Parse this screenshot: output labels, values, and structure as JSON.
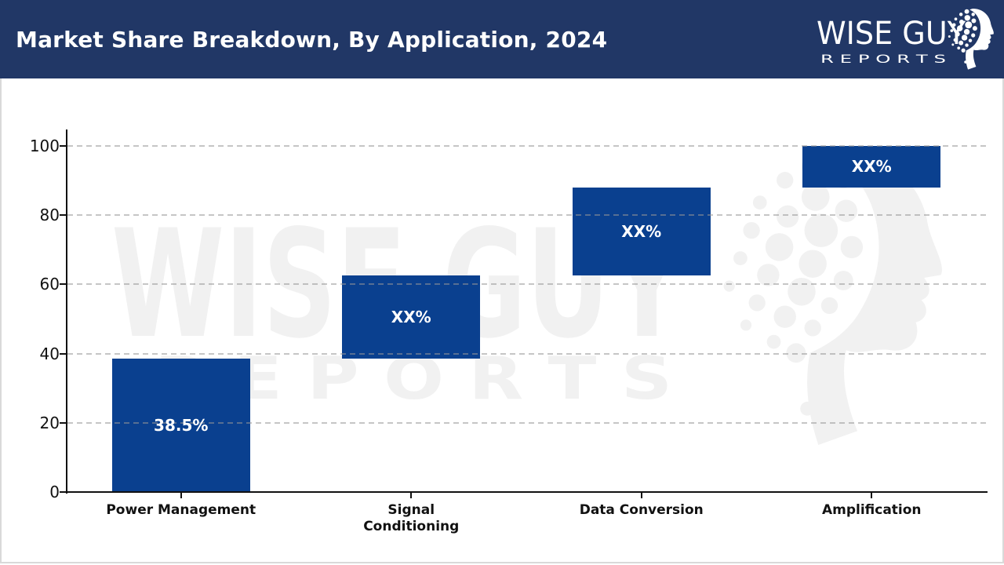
{
  "header": {
    "title": "Market Share Breakdown, By Application, 2024",
    "logo": {
      "line1": "WISE GUY",
      "line2": "R E P O R T S"
    }
  },
  "watermark": {
    "line1": "WISE GUY",
    "line2": "R E P O R T S"
  },
  "colors": {
    "header_bg": "#213766",
    "bar": "#0a408f",
    "bar_label": "#ffffff",
    "axis": "#111111",
    "grid": "rgba(150,150,150,0.55)",
    "watermark": "#f1f1f1",
    "panel_border": "#d9d9d9"
  },
  "chart_data": {
    "type": "bar",
    "subtype": "waterfall",
    "title": "Market Share Breakdown, By Application, 2024",
    "categories": [
      "Power Management",
      "Signal\nConditioning",
      "Data Conversion",
      "Amplification"
    ],
    "series": [
      {
        "name": "Market Share (%)",
        "segments": [
          {
            "category": "Power Management",
            "start": 0,
            "end": 38.5,
            "label": "38.5%"
          },
          {
            "category": "Signal Conditioning",
            "start": 38.5,
            "end": 62.5,
            "label": "XX%"
          },
          {
            "category": "Data Conversion",
            "start": 62.5,
            "end": 88,
            "label": "XX%"
          },
          {
            "category": "Amplification",
            "start": 88,
            "end": 100,
            "label": "XX%"
          }
        ]
      }
    ],
    "ylim": [
      0,
      100
    ],
    "yticks": [
      0,
      20,
      40,
      60,
      80,
      100
    ],
    "grid": "horizontal-dashed",
    "legend": "none"
  }
}
